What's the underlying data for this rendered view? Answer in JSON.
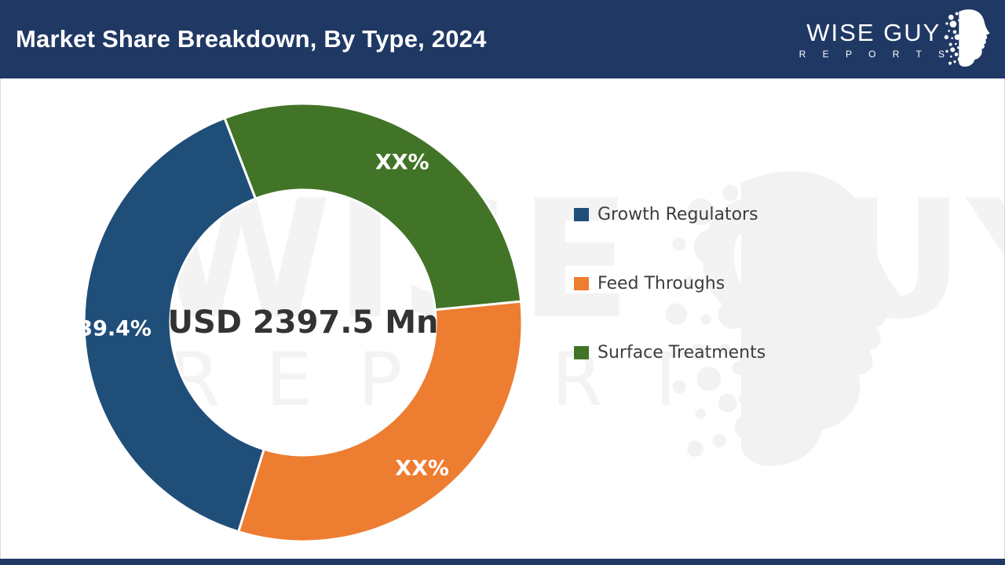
{
  "header": {
    "title": "Market Share Breakdown, By Type, 2024",
    "logo": {
      "line1": "WISE GUY",
      "line2": "R E P O R T S"
    }
  },
  "colors": {
    "header_bg": "#203864",
    "blue": "#1F4E79",
    "orange": "#ED7D31",
    "green": "#427427",
    "center_text": "#333333",
    "legend_text": "#3D3D3D",
    "watermark": "#F3F3F3"
  },
  "chart_data": {
    "type": "pie",
    "subtype": "donut",
    "title": "Market Share Breakdown, By Type, 2024",
    "center_label": "USD 2397.5 Mn",
    "start_angle_deg": 339,
    "direction": "clockwise",
    "inner_radius_ratio": 0.605,
    "legend_position": "right",
    "segments": [
      {
        "name": "Surface Treatments",
        "display_label": "XX%",
        "value_pct_est": 29.3,
        "color": "#427427"
      },
      {
        "name": "Feed Throughs",
        "display_label": "XX%",
        "value_pct_est": 31.3,
        "color": "#ED7D31"
      },
      {
        "name": "Growth Regulators",
        "display_label": "39.4%",
        "value_pct_est": 39.4,
        "color": "#1F4E79"
      }
    ]
  },
  "legend": {
    "items": [
      {
        "label": "Growth Regulators",
        "color": "#1F4E79"
      },
      {
        "label": "Feed Throughs",
        "color": "#ED7D31"
      },
      {
        "label": "Surface Treatments",
        "color": "#427427"
      }
    ]
  },
  "watermark": {
    "line1": "WISE GUY",
    "line2": "REPORTS"
  }
}
